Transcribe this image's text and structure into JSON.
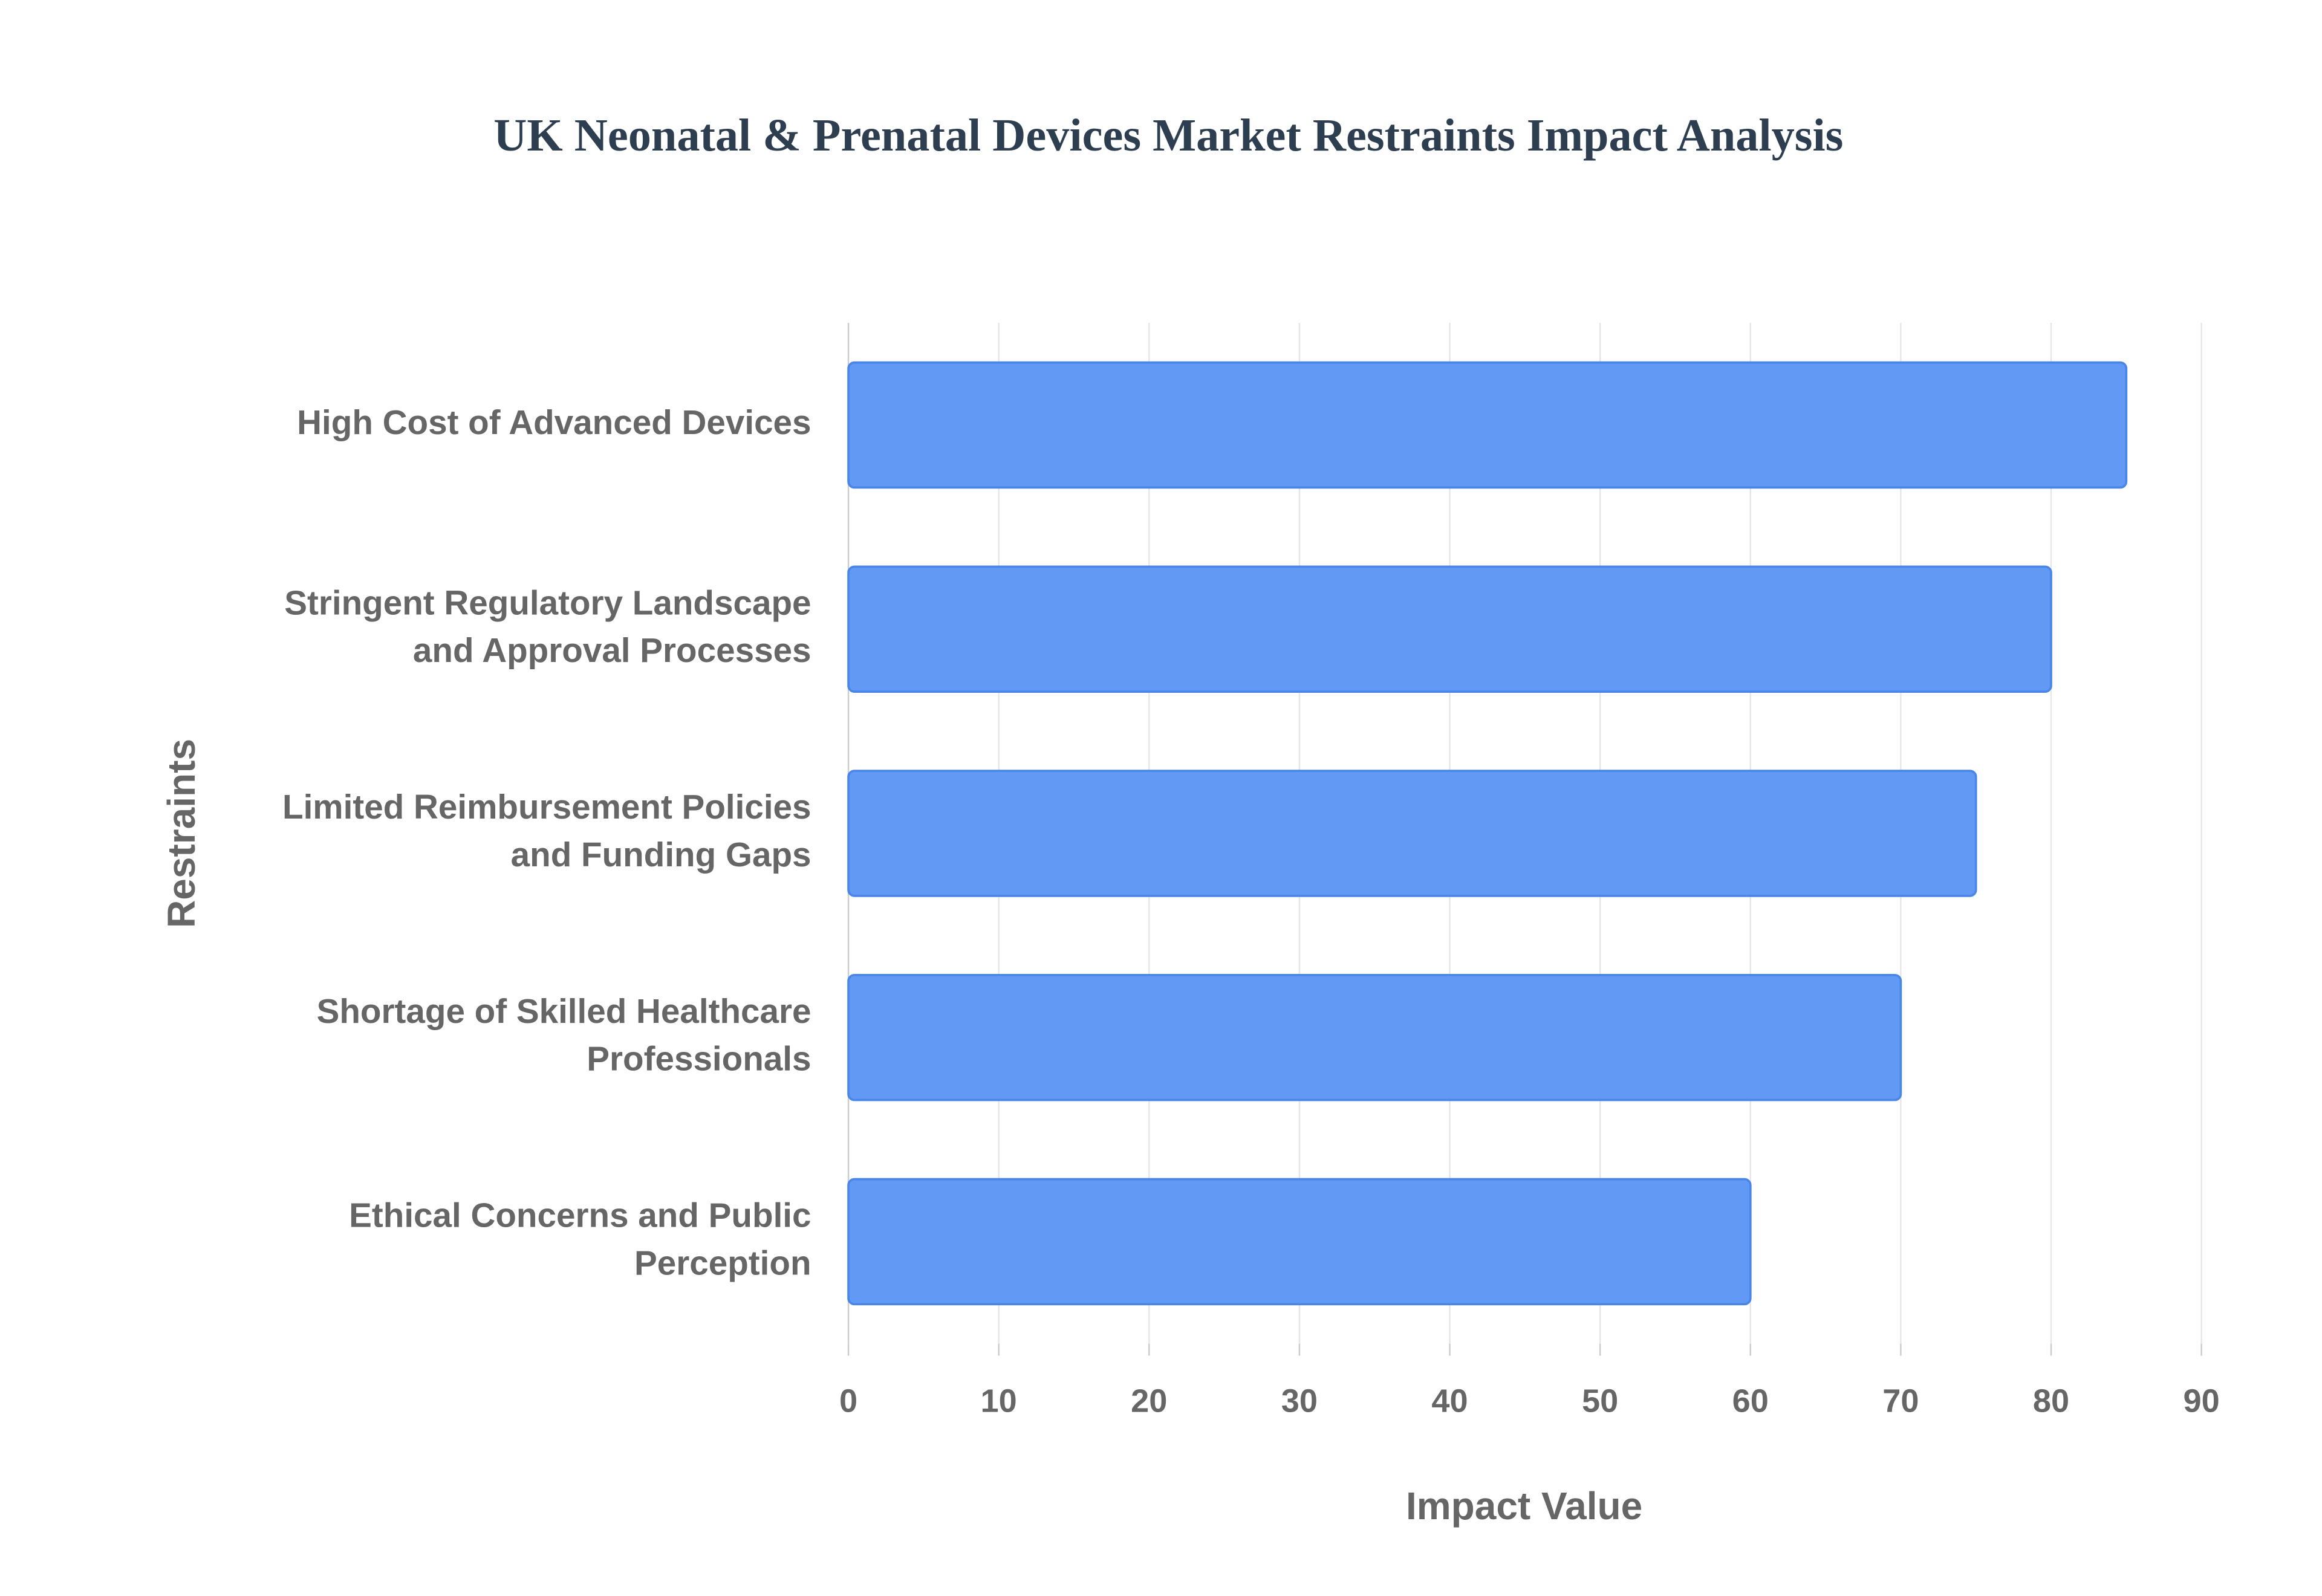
{
  "chart_data": {
    "type": "bar",
    "orientation": "horizontal",
    "title": "UK Neonatal & Prenatal Devices Market Restraints Impact Analysis",
    "x_label": "Impact Value",
    "y_label": "Restraints",
    "categories": [
      "High Cost of Advanced Devices",
      "Stringent Regulatory Landscape and Approval Processes",
      "Limited Reimbursement Policies and Funding Gaps",
      "Shortage of Skilled Healthcare Professionals",
      "Ethical Concerns and Public Perception"
    ],
    "values": [
      85,
      80,
      75,
      70,
      60
    ],
    "color": "#6199f5",
    "xlim": [
      0,
      90
    ],
    "xticks": [
      0,
      10,
      20,
      30,
      40,
      50,
      60,
      70,
      80,
      90
    ],
    "grid": true
  }
}
